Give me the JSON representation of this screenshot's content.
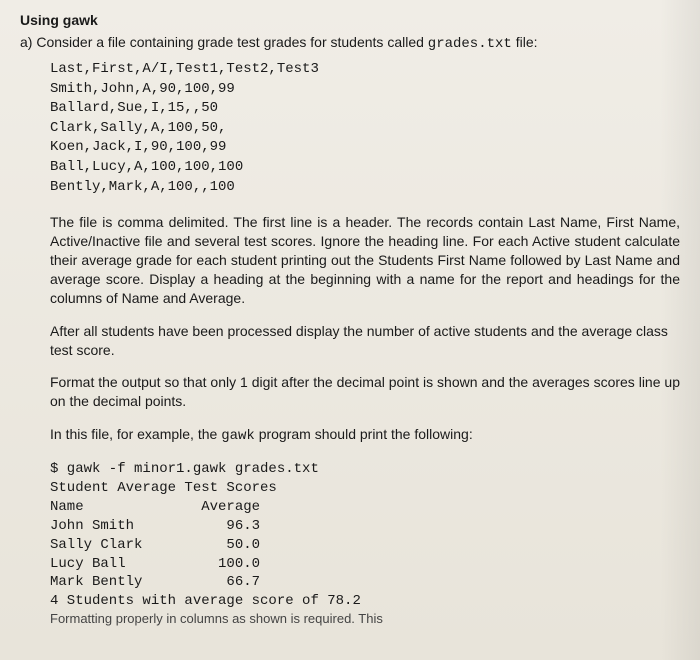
{
  "heading": "Using gawk",
  "question_prefix": "a) Consider a file containing grade test grades for students called ",
  "filename": "grades.txt",
  "question_suffix": " file:",
  "file_contents": "Last,First,A/I,Test1,Test2,Test3\nSmith,John,A,90,100,99\nBallard,Sue,I,15,,50\nClark,Sally,A,100,50,\nKoen,Jack,I,90,100,99\nBall,Lucy,A,100,100,100\nBently,Mark,A,100,,100",
  "para1": "The file is comma delimited. The first line is a header. The records contain Last Name, First Name, Active/Inactive file and several test scores. Ignore the heading line. For each Active student calculate their average grade for each student printing out the Students First Name followed by Last Name and average score. Display a heading at the beginning with a name for the report and headings for the columns of Name and Average.",
  "para2": "After all students have been processed display the number of active students and the average class test score.",
  "para3": "Format the output so that only 1 digit after the decimal point  is shown and the averages scores line up on the decimal points.",
  "example_intro_prefix": "In this file, for example, the ",
  "example_cmd": "gawk",
  "example_intro_suffix": " program should print the following:",
  "sample_output": "$ gawk -f minor1.gawk grades.txt\nStudent Average Test Scores\nName              Average\nJohn Smith           96.3\nSally Clark          50.0\nLucy Ball           100.0\nMark Bently          66.7\n4 Students with average score of 78.2",
  "cutoff_text": "Formatting properly in columns as shown is required. This"
}
